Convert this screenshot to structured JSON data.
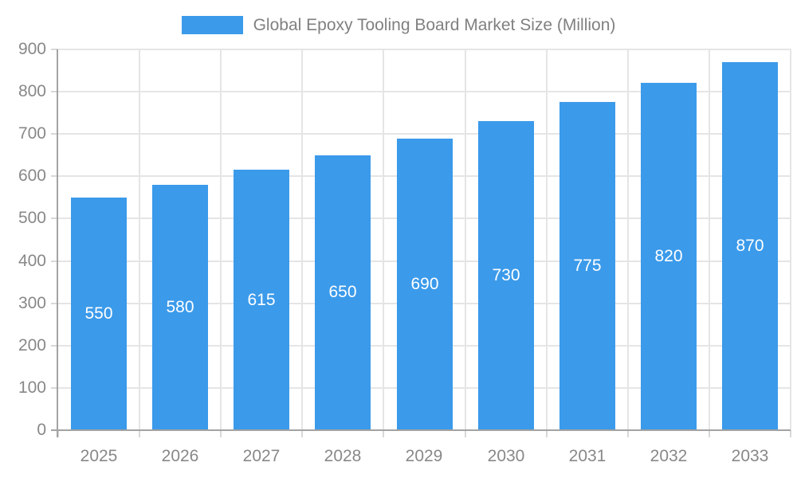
{
  "chart_data": {
    "type": "bar",
    "title": "Global Epoxy Tooling Board Market Size (Million)",
    "categories": [
      "2025",
      "2026",
      "2027",
      "2028",
      "2029",
      "2030",
      "2031",
      "2032",
      "2033"
    ],
    "values": [
      550,
      580,
      615,
      650,
      690,
      730,
      775,
      820,
      870
    ],
    "xlabel": "",
    "ylabel": "",
    "ylim": [
      0,
      900
    ],
    "ytick_step": 100,
    "ytick_labels": [
      "0",
      "100",
      "200",
      "300",
      "400",
      "500",
      "600",
      "700",
      "800",
      "900"
    ],
    "grid": "both",
    "legend_position": "top",
    "value_labels_inside_bars": true,
    "colors": {
      "bar": "#3B9AEA",
      "value_label": "#FFFFFF",
      "axis_line": "#A3A3A3",
      "gridline": "#E5E5E5",
      "tick": "#D8D8D8",
      "axis_label": "#888888",
      "legend_text": "#808080",
      "background": "#FFFFFF"
    }
  }
}
